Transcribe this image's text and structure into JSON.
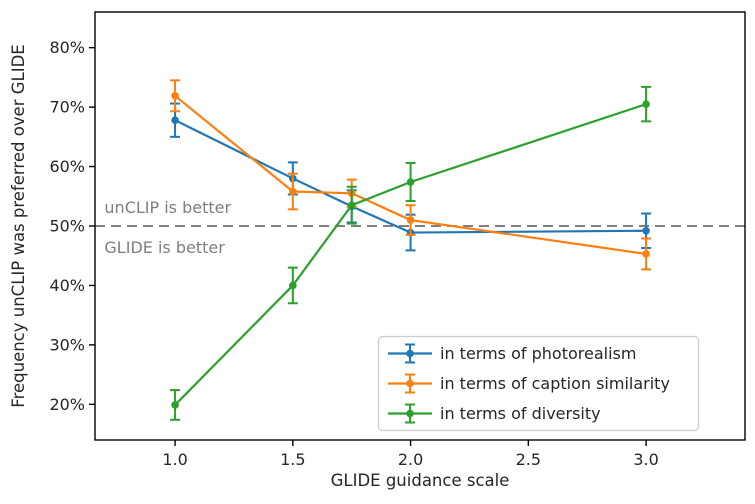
{
  "chart_data": {
    "type": "line",
    "title": "",
    "xlabel": "GLIDE guidance scale",
    "ylabel": "Frequency unCLIP was preferred over GLIDE",
    "background": "#ffffff",
    "grid": false,
    "xlim": [
      0.66,
      3.42
    ],
    "ylim": [
      14,
      86
    ],
    "x_ticks": [
      1.0,
      1.5,
      2.0,
      2.5,
      3.0
    ],
    "x_tick_labels": [
      "1.0",
      "1.5",
      "2.0",
      "2.5",
      "3.0"
    ],
    "y_ticks": [
      20,
      30,
      40,
      50,
      60,
      70,
      80
    ],
    "y_tick_labels": [
      "20%",
      "30%",
      "40%",
      "50%",
      "60%",
      "70%",
      "80%"
    ],
    "reference_line": {
      "y": 50,
      "style": "dashed",
      "color": "#7f7f7f"
    },
    "annotations": [
      {
        "text": "unCLIP is better",
        "x": 0.7,
        "y": 53.0,
        "color": "#7f7f7f"
      },
      {
        "text": "GLIDE is better",
        "x": 0.7,
        "y": 46.3,
        "color": "#7f7f7f"
      }
    ],
    "x": [
      1.0,
      1.5,
      1.75,
      2.0,
      3.0
    ],
    "series": [
      {
        "name": "in terms of photorealism",
        "color": "#1f77b4",
        "values": [
          67.8,
          58.0,
          53.3,
          48.9,
          49.2
        ],
        "errors": [
          2.8,
          2.7,
          2.7,
          3.0,
          2.9
        ]
      },
      {
        "name": "in terms of caption similarity",
        "color": "#ff7f0e",
        "values": [
          71.9,
          55.8,
          55.5,
          51.0,
          45.3
        ],
        "errors": [
          2.6,
          3.0,
          2.3,
          2.5,
          2.6
        ]
      },
      {
        "name": "in terms of diversity",
        "color": "#2ca02c",
        "values": [
          19.9,
          40.0,
          53.5,
          57.4,
          70.5
        ],
        "errors": [
          2.5,
          3.0,
          3.1,
          3.2,
          2.9
        ]
      }
    ],
    "legend": {
      "position": "lower right"
    },
    "axis_color": "#000000",
    "tick_label_color": "#262626"
  }
}
